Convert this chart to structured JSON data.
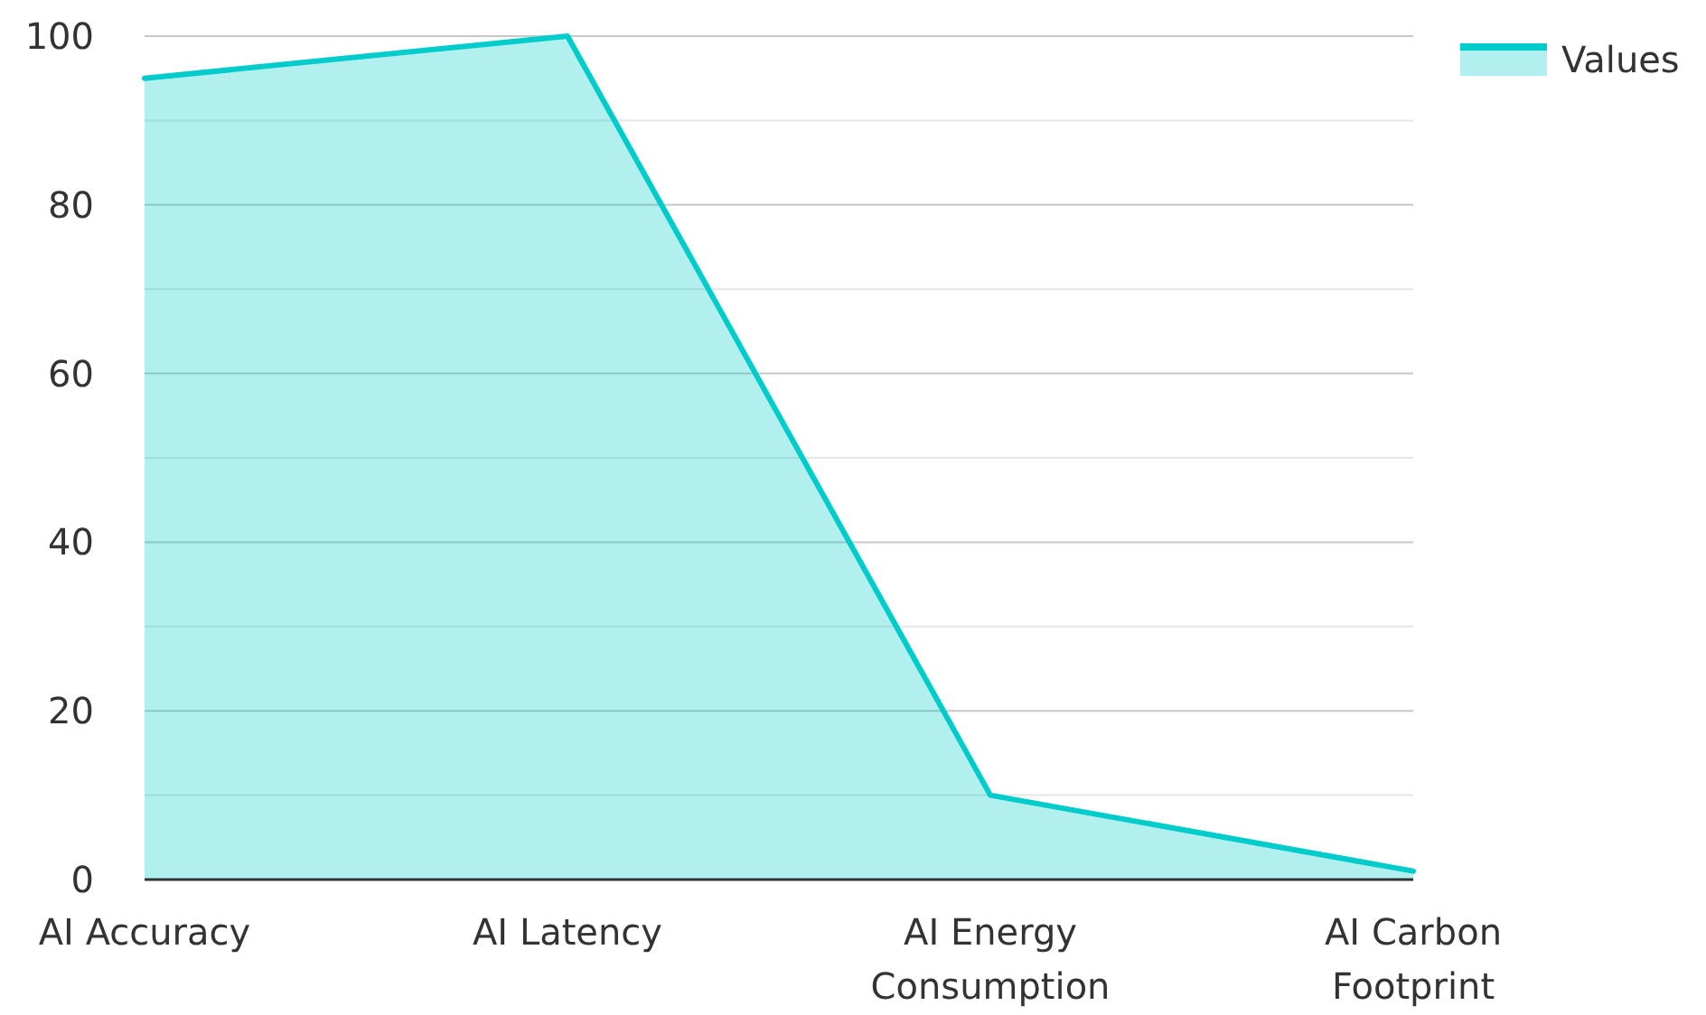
{
  "chart_data": {
    "type": "area",
    "categories": [
      "AI Accuracy",
      "AI Latency",
      "AI Energy Consumption",
      "AI Carbon Footprint"
    ],
    "series": [
      {
        "name": "Values",
        "color": "#00cccc",
        "values": [
          95,
          100,
          10,
          1
        ]
      }
    ],
    "ylim": [
      0,
      100
    ],
    "yticks": [
      0,
      {
        "value": 10,
        "label": null
      },
      20,
      {
        "value": 30,
        "label": null
      },
      40,
      {
        "value": 50,
        "label": null
      },
      60,
      {
        "value": 70,
        "label": null
      },
      80,
      {
        "value": 90,
        "label": null
      },
      100
    ],
    "grid": "y",
    "legend": "top right"
  }
}
